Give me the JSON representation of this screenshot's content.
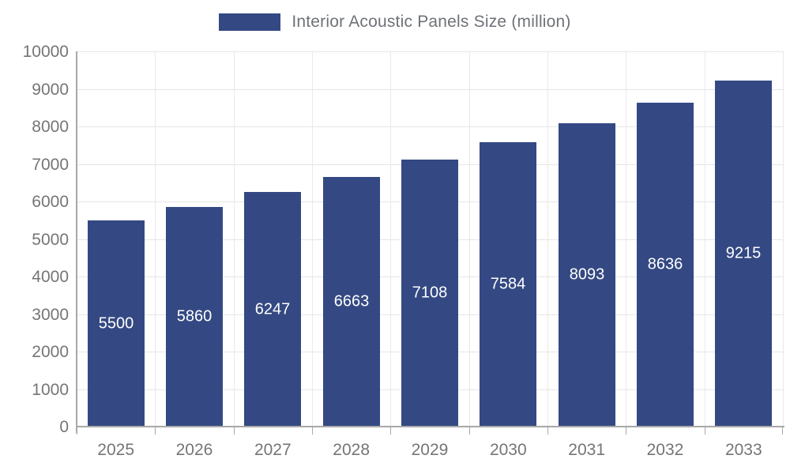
{
  "legend": {
    "label": "Interior Acoustic Panels Size (million)"
  },
  "chart_data": {
    "type": "bar",
    "title": "Interior Acoustic Panels Size (million)",
    "categories": [
      "2025",
      "2026",
      "2027",
      "2028",
      "2029",
      "2030",
      "2031",
      "2032",
      "2033"
    ],
    "values": [
      5500,
      5860,
      6247,
      6663,
      7108,
      7584,
      8093,
      8636,
      9215
    ],
    "xlabel": "",
    "ylabel": "",
    "ylim": [
      0,
      10000
    ],
    "ytick_interval": 1000,
    "ytick_labels": [
      "0",
      "1000",
      "2000",
      "3000",
      "4000",
      "5000",
      "6000",
      "7000",
      "8000",
      "9000",
      "10000"
    ],
    "grid": true,
    "legend_position": "top-center",
    "bar_color": "#344983",
    "value_label_color": "#ffffff",
    "axis_label_color": "#757575",
    "legend_text_color": "#6e7277",
    "gridline_color": "#e6e6e6",
    "axis_line_color": "#a8a8a8"
  }
}
